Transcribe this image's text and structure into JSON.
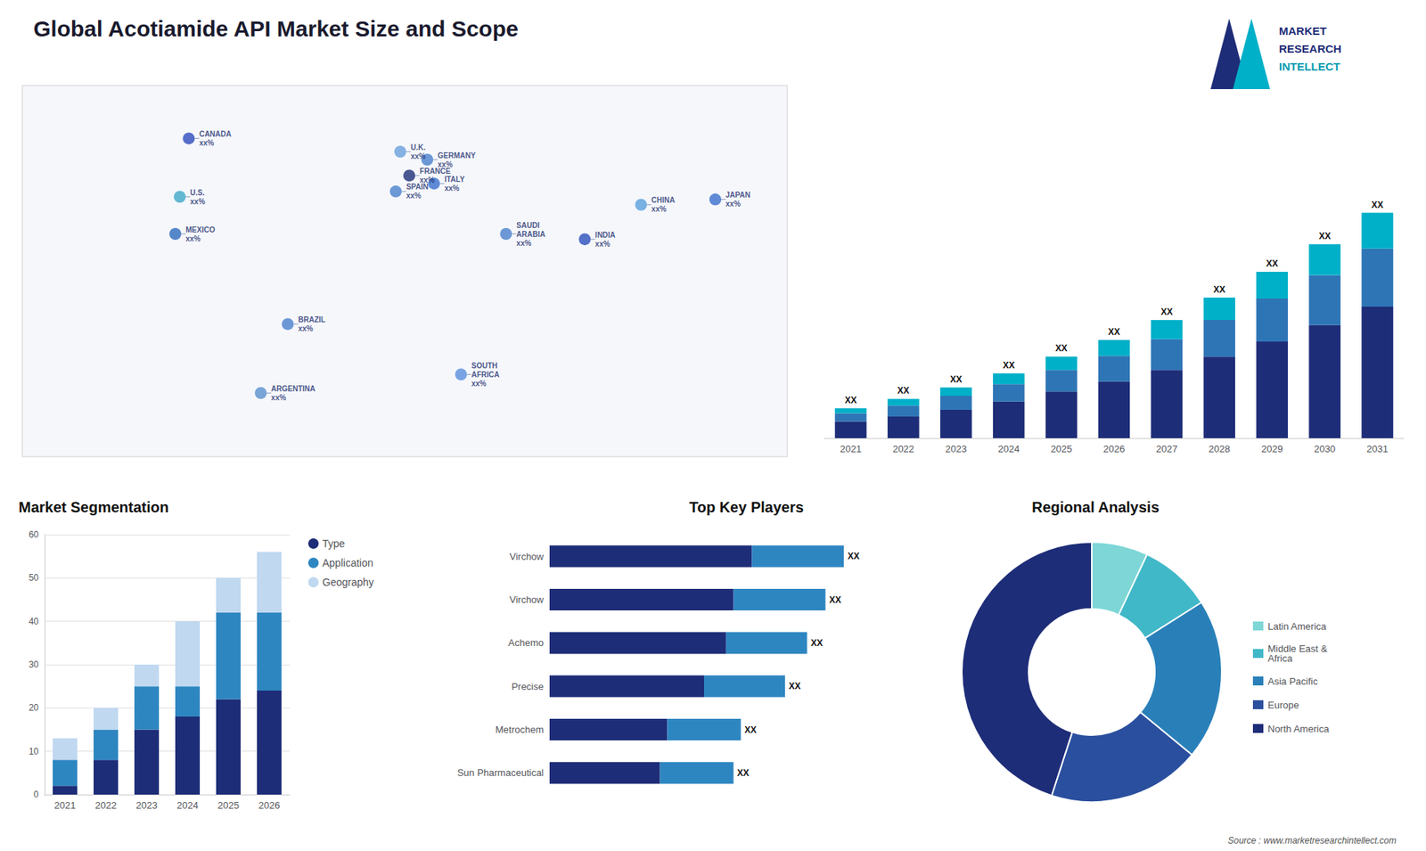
{
  "title": "Global Acotiamide API Market Size and Scope",
  "source": "Source : www.marketresearchintellect.com",
  "logo": [
    "MARKET",
    "RESEARCH",
    "INTELLECT"
  ],
  "chart_data": [
    {
      "type": "map",
      "xlim": [
        -170,
        170
      ],
      "ylim": [
        -60,
        80
      ],
      "tick_labels": false,
      "grid": false,
      "annotations": [
        {
          "text": "CANADA\nxx%",
          "x": -96,
          "y": 60,
          "color": "#2e4bbd"
        },
        {
          "text": "U.S.\nxx%",
          "x": -100,
          "y": 38,
          "color": "#40a8c8"
        },
        {
          "text": "MEXICO\nxx%",
          "x": -102,
          "y": 24,
          "color": "#2e6bbd"
        },
        {
          "text": "BRAZIL\nxx%",
          "x": -52,
          "y": -10,
          "color": "#4a7fcd"
        },
        {
          "text": "ARGENTINA\nxx%",
          "x": -64,
          "y": -36,
          "color": "#5a8fcd"
        },
        {
          "text": "U.K.\nxx%",
          "x": -2,
          "y": 55,
          "color": "#6a9fdd"
        },
        {
          "text": "FRANCE\nxx%",
          "x": 2,
          "y": 46,
          "color": "#1e2d78"
        },
        {
          "text": "SPAIN\nxx%",
          "x": -4,
          "y": 40,
          "color": "#4a7fcd"
        },
        {
          "text": "GERMANY\nxx%",
          "x": 10,
          "y": 52,
          "color": "#4a7fcd"
        },
        {
          "text": "ITALY\nxx%",
          "x": 13,
          "y": 43,
          "color": "#3a6fcd"
        },
        {
          "text": "SAUDI\nARABIA\nxx%",
          "x": 45,
          "y": 24,
          "color": "#4a7fcd"
        },
        {
          "text": "SOUTH\nAFRICA\nxx%",
          "x": 25,
          "y": -29,
          "color": "#5a8fdd"
        },
        {
          "text": "CHINA\nxx%",
          "x": 105,
          "y": 35,
          "color": "#5a9fdd"
        },
        {
          "text": "INDIA\nxx%",
          "x": 80,
          "y": 22,
          "color": "#2a4fbd"
        },
        {
          "text": "JAPAN\nxx%",
          "x": 138,
          "y": 37,
          "color": "#3a6fcd"
        }
      ]
    },
    {
      "type": "bar",
      "categories": [
        "2021",
        "2022",
        "2023",
        "2024",
        "2025",
        "2026",
        "2027",
        "2028",
        "2029",
        "2030",
        "2031"
      ],
      "series": [
        {
          "color": "#1e2d78",
          "values": [
            1.0,
            1.3,
            1.7,
            2.2,
            2.8,
            3.4,
            4.1,
            4.9,
            5.8,
            6.8,
            7.9
          ]
        },
        {
          "color": "#2e75b6",
          "values": [
            0.5,
            0.65,
            0.85,
            1.05,
            1.3,
            1.55,
            1.85,
            2.2,
            2.6,
            3.0,
            3.5
          ]
        },
        {
          "color": "#00b0c8",
          "values": [
            0.3,
            0.4,
            0.5,
            0.65,
            0.8,
            0.95,
            1.15,
            1.35,
            1.6,
            1.85,
            2.15
          ]
        }
      ],
      "stacked": true,
      "ylim": [
        0,
        19.6475
      ],
      "tick_labels": "x",
      "grid": false,
      "total_labels": [
        "XX",
        "XX",
        "XX",
        "XX",
        "XX",
        "XX",
        "XX",
        "XX",
        "XX",
        "XX",
        "XX"
      ]
    },
    {
      "type": "bar",
      "title": "Market Segmentation",
      "categories": [
        "2021",
        "2022",
        "2023",
        "2024",
        "2025",
        "2026"
      ],
      "series": [
        {
          "name": "Type",
          "color": "#1e2d78",
          "values": [
            2,
            8,
            15,
            18,
            22,
            24
          ]
        },
        {
          "name": "Application",
          "color": "#2e86c1",
          "values": [
            6,
            7,
            10,
            7,
            20,
            18
          ]
        },
        {
          "name": "Geography",
          "color": "#c0d8f0",
          "values": [
            5,
            5,
            5,
            15,
            8,
            14
          ]
        }
      ],
      "stacked": true,
      "ylim": [
        0,
        60
      ],
      "yticks": [
        0,
        10,
        20,
        30,
        40,
        50,
        60
      ],
      "grid": true,
      "legend": "right"
    },
    {
      "type": "bar",
      "title": "Top Key Players",
      "orientation": "horizontal",
      "categories": [
        "Virchow",
        "Virchow",
        "Achemo",
        "Precise",
        "Metrochem",
        "Sun Pharmaceutical"
      ],
      "series": [
        {
          "colors": [
            "#1e2d78",
            "#1e2d78",
            "#1e2d78",
            "#1e2d78",
            "#1e2d78",
            "#1e2d78"
          ],
          "values": [
            0.55,
            0.5,
            0.48,
            0.42,
            0.32,
            0.3
          ]
        },
        {
          "colors": [
            "#2e86c1",
            "#2e86c1",
            "#2e86c1",
            "#2e86c1",
            "#2e86c1",
            "#2e86c1"
          ],
          "values": [
            0.25,
            0.25,
            0.22,
            0.22,
            0.2,
            0.2
          ]
        }
      ],
      "stacked": true,
      "xlim": [
        0,
        1.05
      ],
      "tick_labels": "y",
      "grid": false,
      "total_labels": [
        "XX",
        "XX",
        "XX",
        "XX",
        "XX",
        "XX"
      ]
    },
    {
      "type": "donut",
      "title": "Regional Analysis",
      "categories": [
        "Latin America",
        "Middle East &\nAfrica",
        "Asia Pacific",
        "Europe",
        "North America"
      ],
      "values": [
        7,
        9,
        20,
        19,
        45
      ],
      "colors": [
        "#7ed6d6",
        "#40b8c8",
        "#2980b9",
        "#2a4f9e",
        "#1e2d78"
      ],
      "legend": "right"
    }
  ]
}
